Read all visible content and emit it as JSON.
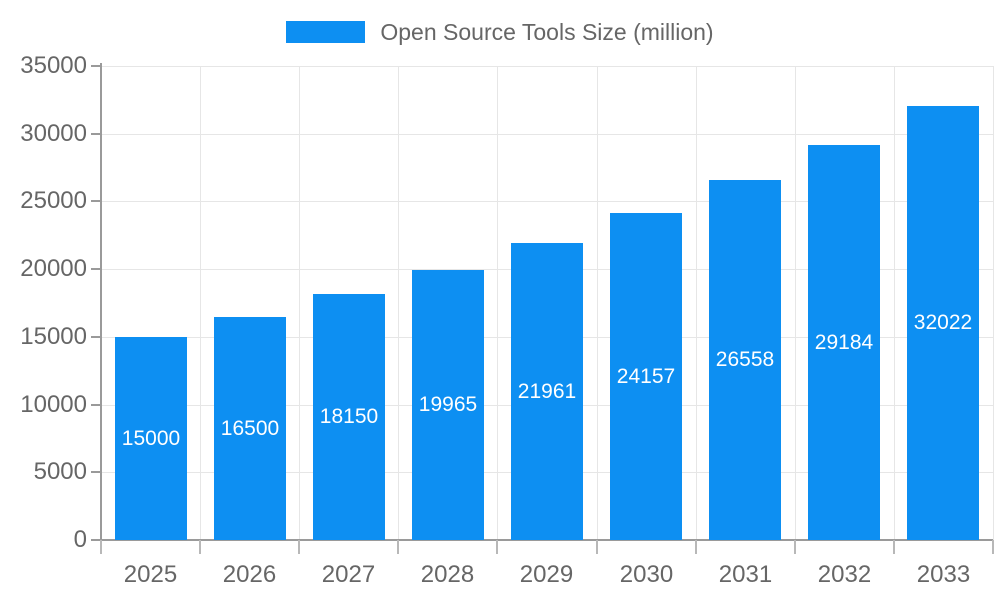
{
  "chart_data": {
    "type": "bar",
    "title": "",
    "legend": {
      "label": "Open Source Tools Size (million)",
      "position": "top-center"
    },
    "categories": [
      "2025",
      "2026",
      "2027",
      "2028",
      "2029",
      "2030",
      "2031",
      "2032",
      "2033"
    ],
    "series": [
      {
        "name": "Open Source Tools Size (million)",
        "values": [
          15000,
          16500,
          18150,
          19965,
          21961,
          24157,
          26558,
          29184,
          32022
        ]
      }
    ],
    "value_labels": [
      "15000",
      "16500",
      "18150",
      "19965",
      "21961",
      "24157",
      "26558",
      "29184",
      "32022"
    ],
    "xlabel": "",
    "ylabel": "",
    "ylim": [
      0,
      35000
    ],
    "yticks": [
      0,
      5000,
      10000,
      15000,
      20000,
      25000,
      30000,
      35000
    ],
    "grid": "horizontal-and-vertical",
    "colors": {
      "bar": "#0d8ff2",
      "value_label_text": "#ffffff",
      "grid_line": "#e6e6e6",
      "axis_line": "#9a9a9a",
      "tick_text": "#666666",
      "legend_text": "#666666",
      "background": "#ffffff"
    }
  }
}
